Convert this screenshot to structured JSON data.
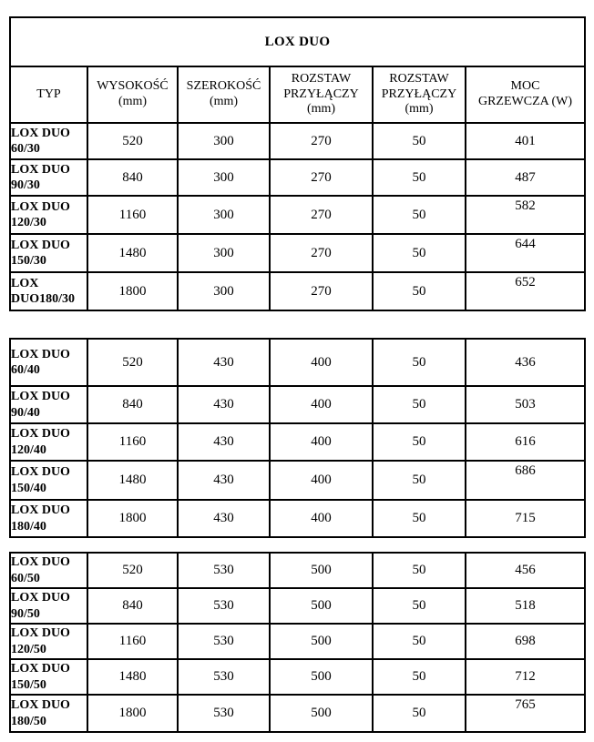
{
  "colors": {
    "border": "#000000",
    "text": "#000000",
    "background": "#ffffff"
  },
  "table": {
    "title": "LOX DUO",
    "columns": [
      {
        "id": "typ",
        "lines": [
          "TYP"
        ]
      },
      {
        "id": "wysokosc",
        "lines": [
          "WYSOKOŚĆ",
          "(mm)"
        ]
      },
      {
        "id": "szerokosc",
        "lines": [
          "SZEROKOŚĆ",
          "(mm)"
        ]
      },
      {
        "id": "rozstaw-przylaczy-1",
        "lines": [
          "ROZSTAW",
          "PRZYŁĄCZY",
          "(mm)"
        ]
      },
      {
        "id": "rozstaw-przylaczy-2",
        "lines": [
          "ROZSTAW",
          "PRZYŁĄCZY",
          "(mm)"
        ]
      },
      {
        "id": "moc-grzewcza",
        "lines": [
          "MOC",
          "GRZEWCZA (W)"
        ]
      }
    ],
    "groups": [
      {
        "rows": [
          {
            "typ_lines": [
              "LOX DUO",
              "60/30"
            ],
            "values": [
              "520",
              "300",
              "270",
              "50",
              "401"
            ],
            "moc_valign": "middle"
          },
          {
            "typ_lines": [
              "LOX DUO",
              "90/30"
            ],
            "values": [
              "840",
              "300",
              "270",
              "50",
              "487"
            ],
            "moc_valign": "middle"
          },
          {
            "typ_lines": [
              "LOX DUO",
              "120/30"
            ],
            "values": [
              "1160",
              "300",
              "270",
              "50",
              "582"
            ],
            "moc_valign": "top"
          },
          {
            "typ_lines": [
              "LOX DUO",
              "150/30"
            ],
            "values": [
              "1480",
              "300",
              "270",
              "50",
              "644"
            ],
            "moc_valign": "top"
          },
          {
            "typ_lines": [
              "LOX",
              "DUO180/30"
            ],
            "values": [
              "1800",
              "300",
              "270",
              "50",
              "652"
            ],
            "moc_valign": "top"
          }
        ]
      },
      {
        "rows": [
          {
            "typ_lines": [
              "LOX DUO",
              "60/40"
            ],
            "values": [
              "520",
              "430",
              "400",
              "50",
              "436"
            ],
            "moc_valign": "middle"
          },
          {
            "typ_lines": [
              "LOX DUO",
              "90/40"
            ],
            "values": [
              "840",
              "430",
              "400",
              "50",
              "503"
            ],
            "moc_valign": "middle"
          },
          {
            "typ_lines": [
              "LOX DUO",
              "120/40"
            ],
            "values": [
              "1160",
              "430",
              "400",
              "50",
              "616"
            ],
            "moc_valign": "middle"
          },
          {
            "typ_lines": [
              "LOX DUO",
              "150/40"
            ],
            "values": [
              "1480",
              "430",
              "400",
              "50",
              "686"
            ],
            "moc_valign": "top"
          },
          {
            "typ_lines": [
              "LOX DUO",
              "180/40"
            ],
            "values": [
              "1800",
              "430",
              "400",
              "50",
              "715"
            ],
            "moc_valign": "middle"
          }
        ]
      },
      {
        "rows": [
          {
            "typ_lines": [
              "LOX DUO",
              "60/50"
            ],
            "values": [
              "520",
              "530",
              "500",
              "50",
              "456"
            ],
            "moc_valign": "middle"
          },
          {
            "typ_lines": [
              "LOX DUO",
              "90/50"
            ],
            "values": [
              "840",
              "530",
              "500",
              "50",
              "518"
            ],
            "moc_valign": "middle"
          },
          {
            "typ_lines": [
              "LOX DUO",
              "120/50"
            ],
            "values": [
              "1160",
              "530",
              "500",
              "50",
              "698"
            ],
            "moc_valign": "middle"
          },
          {
            "typ_lines": [
              "LOX DUO",
              "150/50"
            ],
            "values": [
              "1480",
              "530",
              "500",
              "50",
              "712"
            ],
            "moc_valign": "middle"
          },
          {
            "typ_lines": [
              "LOX DUO",
              "180/50"
            ],
            "values": [
              "1800",
              "530",
              "500",
              "50",
              "765"
            ],
            "moc_valign": "top"
          }
        ]
      }
    ]
  }
}
